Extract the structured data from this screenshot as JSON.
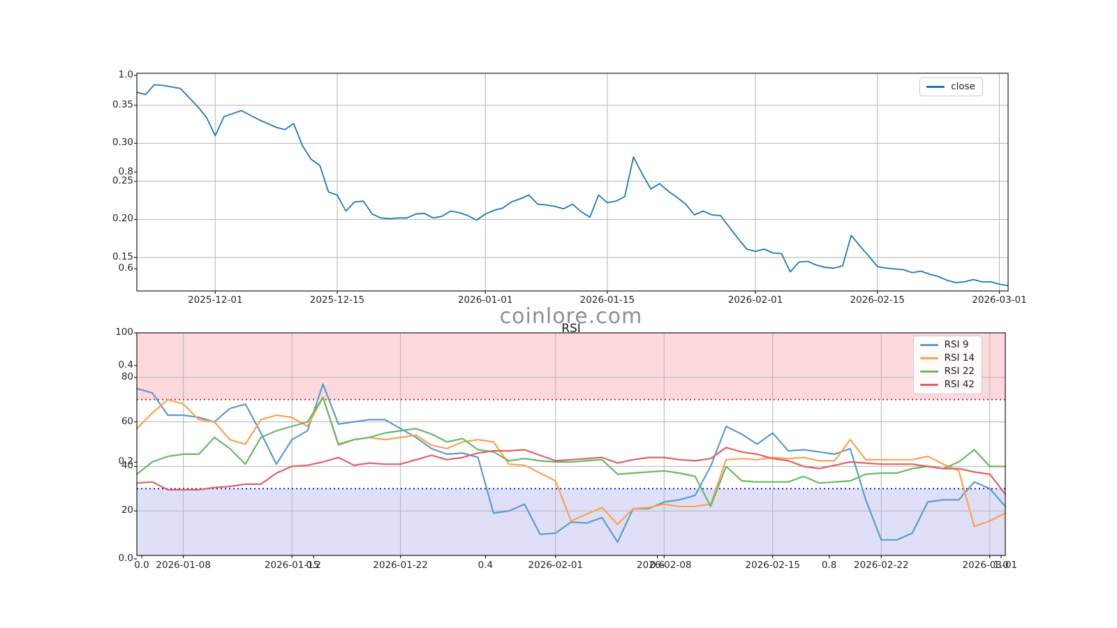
{
  "watermark": "coinlore.com",
  "overlay_axis": {
    "xticks": [
      {
        "f": 0.0,
        "label": "0.0"
      },
      {
        "f": 0.2,
        "label": "0.2"
      },
      {
        "f": 0.4,
        "label": "0.4"
      },
      {
        "f": 0.6,
        "label": "0.6"
      },
      {
        "f": 0.8,
        "label": "0.8"
      },
      {
        "f": 1.0,
        "label": "1.0"
      }
    ],
    "yticks": [
      {
        "f": 0.0,
        "label": "0.0"
      },
      {
        "f": 0.2,
        "label": "0.2"
      },
      {
        "f": 0.4,
        "label": "0.4"
      },
      {
        "f": 0.6,
        "label": "0.6"
      },
      {
        "f": 0.8,
        "label": "0.8"
      },
      {
        "f": 1.0,
        "label": "1.0"
      }
    ]
  },
  "chart_data": [
    {
      "id": "price",
      "type": "line",
      "title": "",
      "grid": true,
      "legend": {
        "position": "upper right",
        "entries": [
          "close"
        ]
      },
      "x_start": "2025-11-22",
      "x_end": "2026-03-02",
      "xticks": [
        {
          "date": "2025-12-01",
          "label": "2025-12-01"
        },
        {
          "date": "2025-12-15",
          "label": "2025-12-15"
        },
        {
          "date": "2026-01-01",
          "label": "2026-01-01"
        },
        {
          "date": "2026-01-15",
          "label": "2026-01-15"
        },
        {
          "date": "2026-02-01",
          "label": "2026-02-01"
        },
        {
          "date": "2026-02-15",
          "label": "2026-02-15"
        },
        {
          "date": "2026-03-01",
          "label": "2026-03-01"
        }
      ],
      "ylim": [
        0.106,
        0.392
      ],
      "yticks": [
        {
          "value": 0.15,
          "label": "0.15"
        },
        {
          "value": 0.2,
          "label": "0.20"
        },
        {
          "value": 0.25,
          "label": "0.25"
        },
        {
          "value": 0.3,
          "label": "0.30"
        },
        {
          "value": 0.35,
          "label": "0.35"
        }
      ],
      "series": [
        {
          "name": "close",
          "color": "#1f77b4",
          "width": 1.8,
          "values": [
            0.367,
            0.364,
            0.377,
            0.376,
            0.374,
            0.372,
            0.36,
            0.348,
            0.334,
            0.31,
            0.335,
            0.339,
            0.343,
            0.337,
            0.331,
            0.326,
            0.321,
            0.318,
            0.326,
            0.297,
            0.279,
            0.271,
            0.236,
            0.232,
            0.211,
            0.223,
            0.224,
            0.207,
            0.202,
            0.201,
            0.202,
            0.202,
            0.207,
            0.208,
            0.202,
            0.204,
            0.211,
            0.209,
            0.205,
            0.199,
            0.207,
            0.212,
            0.215,
            0.223,
            0.227,
            0.232,
            0.22,
            0.219,
            0.217,
            0.214,
            0.22,
            0.21,
            0.203,
            0.232,
            0.222,
            0.224,
            0.23,
            0.282,
            0.26,
            0.24,
            0.247,
            0.237,
            0.229,
            0.22,
            0.206,
            0.211,
            0.206,
            0.205,
            0.19,
            0.175,
            0.161,
            0.158,
            0.161,
            0.156,
            0.155,
            0.131,
            0.144,
            0.145,
            0.14,
            0.137,
            0.136,
            0.139,
            0.179,
            0.165,
            0.152,
            0.138,
            0.136,
            0.135,
            0.134,
            0.13,
            0.132,
            0.128,
            0.125,
            0.12,
            0.117,
            0.118,
            0.121,
            0.118,
            0.118,
            0.115,
            0.113
          ]
        }
      ]
    },
    {
      "id": "rsi",
      "type": "line",
      "title": "RSI",
      "grid": true,
      "legend": {
        "position": "upper right",
        "entries": [
          "RSI 9",
          "RSI 14",
          "RSI 22",
          "RSI 42"
        ]
      },
      "x_start": "2026-01-05",
      "x_end": "2026-03-02",
      "xticks": [
        {
          "date": "2026-01-08",
          "label": "2026-01-08"
        },
        {
          "date": "2026-01-15",
          "label": "2026-01-15"
        },
        {
          "date": "2026-01-22",
          "label": "2026-01-22"
        },
        {
          "date": "2026-02-01",
          "label": "2026-02-01"
        },
        {
          "date": "2026-02-08",
          "label": "2026-02-08"
        },
        {
          "date": "2026-02-15",
          "label": "2026-02-15"
        },
        {
          "date": "2026-02-22",
          "label": "2026-02-22"
        },
        {
          "date": "2026-03-01",
          "label": "2026-03-01"
        }
      ],
      "ylim": [
        0,
        100
      ],
      "yticks": [
        {
          "value": 20,
          "label": "20"
        },
        {
          "value": 40,
          "label": "40"
        },
        {
          "value": 60,
          "label": "60"
        },
        {
          "value": 80,
          "label": "80"
        },
        {
          "value": 100,
          "label": "100"
        }
      ],
      "bands": [
        {
          "from": 70,
          "to": 100,
          "color": "#fbd9dc",
          "name": "overbought-zone"
        },
        {
          "from": 0,
          "to": 30,
          "color": "#dfdff8",
          "name": "oversold-zone"
        }
      ],
      "hlines": [
        {
          "y": 70,
          "color": "#cc1133",
          "name": "overbought-line"
        },
        {
          "y": 30,
          "color": "#1414b8",
          "name": "oversold-line"
        }
      ],
      "series": [
        {
          "name": "RSI 9",
          "color": "#5d9bca",
          "width": 2.2,
          "values": [
            75,
            73,
            63,
            63,
            62,
            60,
            66,
            68,
            55,
            41,
            52,
            56,
            77,
            59,
            60,
            61,
            61,
            57,
            53,
            48,
            45.5,
            46,
            44,
            19,
            20,
            23,
            9.5,
            10,
            15,
            14.5,
            17,
            6,
            21,
            21,
            24,
            25,
            27,
            40,
            58,
            54.5,
            50,
            55,
            47,
            47.5,
            46.5,
            45.5,
            48,
            25,
            7,
            7,
            10,
            24,
            25,
            25,
            33,
            30,
            22
          ]
        },
        {
          "name": "RSI 14",
          "color": "#ffa04f",
          "width": 2.2,
          "values": [
            57,
            64,
            70,
            68,
            61,
            60,
            52,
            50,
            61,
            63,
            62,
            58,
            71,
            49.5,
            52,
            53,
            52,
            53,
            54,
            49.5,
            48,
            51,
            52,
            51,
            41,
            40.5,
            37,
            33.5,
            15.5,
            18.5,
            21.5,
            14,
            21,
            21.5,
            23,
            22,
            22,
            23,
            43,
            43.5,
            43,
            44,
            43.5,
            44,
            42.5,
            42.5,
            52,
            43,
            43,
            43,
            43,
            44.5,
            41,
            38,
            13,
            15.5,
            19
          ]
        },
        {
          "name": "RSI 22",
          "color": "#67b967",
          "width": 2.2,
          "values": [
            36.5,
            42,
            44.5,
            45.5,
            45.5,
            53,
            48,
            41,
            53,
            56,
            58,
            60,
            71,
            50,
            52,
            53,
            55,
            56,
            57,
            54.5,
            51,
            52.5,
            47.5,
            46.5,
            42.5,
            43.5,
            42.5,
            42,
            42,
            42.5,
            43,
            36.5,
            37,
            37.5,
            38,
            37,
            35.5,
            22,
            40,
            33.5,
            33,
            33,
            33,
            35.5,
            32.5,
            33,
            33.5,
            36.5,
            37,
            37,
            39,
            40,
            39,
            42,
            47.5,
            40,
            40
          ]
        },
        {
          "name": "RSI 42",
          "color": "#e06162",
          "width": 2.2,
          "values": [
            32.5,
            33,
            29.5,
            29.5,
            29.5,
            30.5,
            31,
            32,
            32,
            37,
            40,
            40.5,
            42,
            44,
            40.5,
            41.5,
            41,
            41,
            43,
            45,
            43,
            44,
            46,
            47,
            47,
            47.5,
            45,
            42.5,
            43,
            43.5,
            44,
            41.5,
            43,
            44,
            44,
            43,
            42.5,
            43.5,
            48.5,
            46.5,
            45.5,
            43.5,
            42.5,
            40,
            39,
            40.5,
            42,
            41.5,
            41,
            41,
            41,
            40,
            39,
            39,
            37.5,
            36.5,
            27.5
          ]
        }
      ]
    }
  ]
}
